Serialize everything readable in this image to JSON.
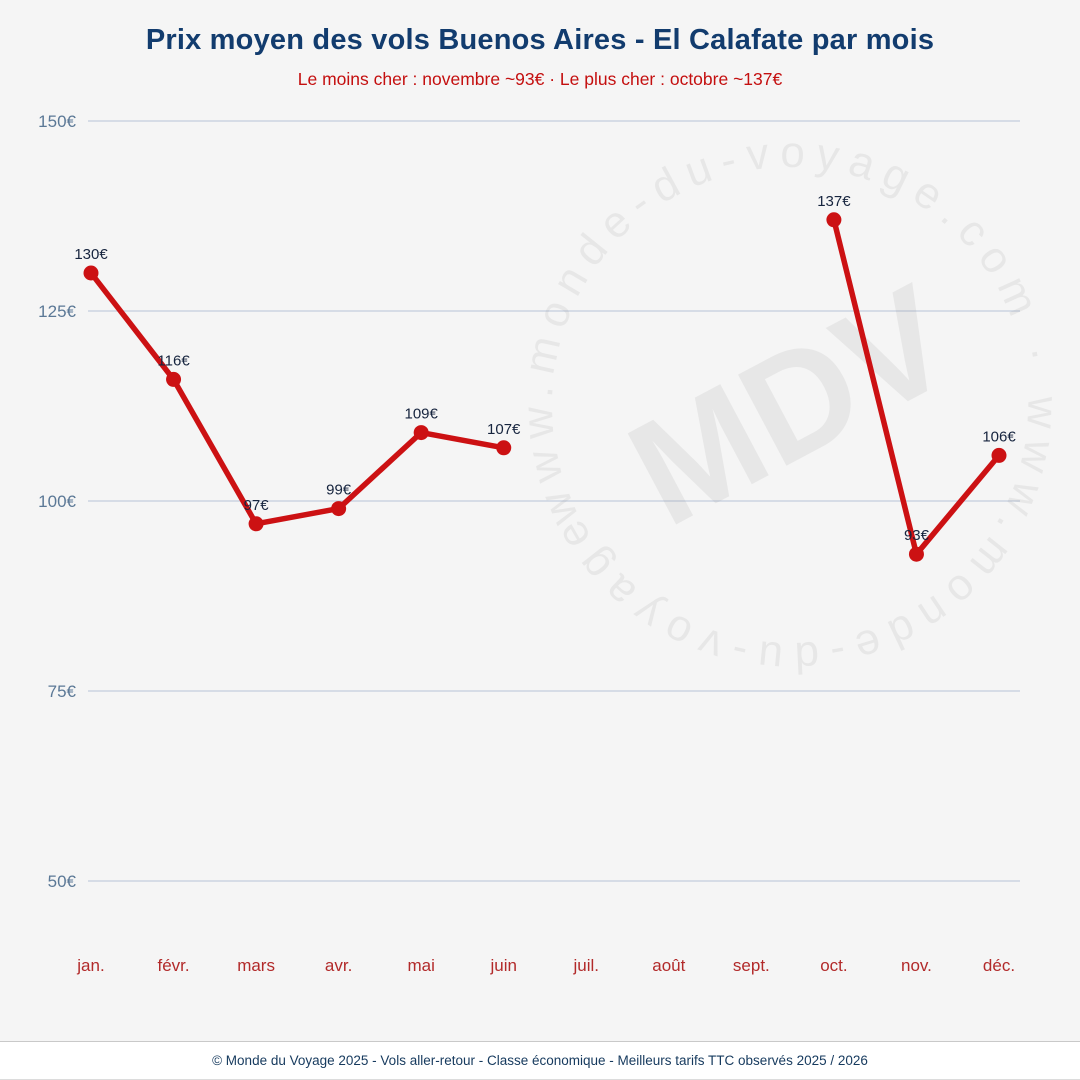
{
  "page": {
    "title": "Prix moyen des vols Buenos Aires - El Calafate par mois",
    "subtitle": "Le moins cher : novembre ~93€ · Le plus cher : octobre ~137€",
    "footer": "© Monde du Voyage 2025 - Vols aller-retour - Classe économique - Meilleurs tarifs TTC observés 2025 / 2026",
    "watermark": {
      "ring_text": "www.monde-du-voyage.com",
      "center_text": "MDV"
    }
  },
  "chart_data": {
    "type": "line",
    "title": "Prix moyen des vols Buenos Aires - El Calafate par mois",
    "subtitle": "Le moins cher : novembre ~93€ · Le plus cher : octobre ~137€",
    "categories": [
      "jan.",
      "févr.",
      "mars",
      "avr.",
      "mai",
      "juin",
      "juil.",
      "août",
      "sept.",
      "oct.",
      "nov.",
      "déc."
    ],
    "values": [
      130,
      116,
      97,
      99,
      109,
      107,
      null,
      null,
      null,
      137,
      93,
      106
    ],
    "unit": "€",
    "y_ticks": [
      150,
      125,
      100,
      75,
      50
    ],
    "ylim": [
      50,
      150
    ],
    "xlabel": "",
    "ylabel": "",
    "grid": true,
    "legend": "none",
    "cheapest": {
      "month": "novembre",
      "value": 93
    },
    "most_expensive": {
      "month": "octobre",
      "value": 137
    },
    "colors": {
      "line": "#cc1113",
      "point": "#cc1113",
      "grid": "#c3cddd",
      "tick_label": "#5b7896",
      "month_label": "#b22a2a",
      "point_label": "#16243e"
    }
  }
}
